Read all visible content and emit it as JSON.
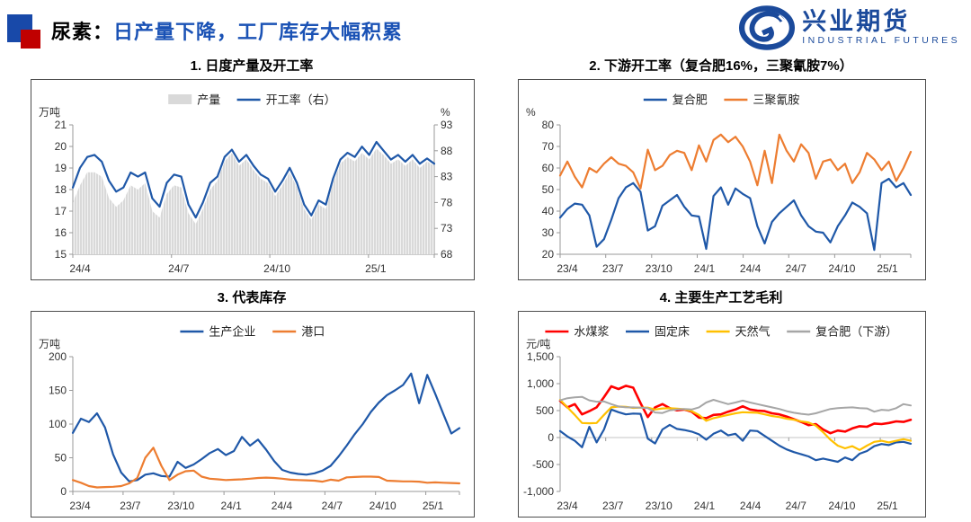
{
  "header": {
    "title_prefix": "尿素：",
    "title_main": "日产量下降，工厂库存大幅积累",
    "brand_cn": "兴业期货",
    "brand_en": "INDUSTRIAL FUTURES"
  },
  "colors": {
    "title_blue": "#1A52B5",
    "brand_navy": "#1B4A9B",
    "deco_blue": "#1849A9",
    "deco_red": "#C00000",
    "line_blue": "#1F58A8",
    "line_orange": "#ED7D31",
    "line_red": "#FF0000",
    "line_yellow": "#FFC000",
    "line_gray": "#A6A6A6",
    "area_gray": "#D9D9D9"
  },
  "chart_data": [
    {
      "type": "area+line",
      "title": "1. 日度产量及开工率",
      "unit_left": "万吨",
      "unit_right": "%",
      "ylim": [
        15,
        21
      ],
      "yticks": [
        [
          15,
          "15"
        ],
        [
          16,
          "16"
        ],
        [
          17,
          "17"
        ],
        [
          18,
          "18"
        ],
        [
          19,
          "19"
        ],
        [
          20,
          "20"
        ],
        [
          21,
          "21"
        ]
      ],
      "right_ylim": [
        68,
        93
      ],
      "right_yticks": [
        [
          68,
          "68"
        ],
        [
          73,
          "73"
        ],
        [
          78,
          "78"
        ],
        [
          83,
          "83"
        ],
        [
          88,
          "88"
        ],
        [
          93,
          "93"
        ]
      ],
      "xtick_labels": [
        "24/4",
        "24/7",
        "24/10",
        "25/1"
      ],
      "xtick_pos": [
        0,
        0.273,
        0.545,
        0.818
      ],
      "legend_position": "top",
      "grid": false,
      "series": [
        {
          "name": "产量",
          "type": "area",
          "axis": "left",
          "color": "#D9D9D9",
          "values": [
            17.4,
            18.2,
            18.8,
            18.8,
            18.6,
            17.6,
            17.2,
            17.5,
            18.2,
            18,
            18.3,
            17,
            16.7,
            17.8,
            18.2,
            18.1,
            16.9,
            16.4,
            17.1,
            18,
            18.4,
            19.3,
            19.7,
            19.1,
            19.4,
            18.9,
            18.5,
            18.3,
            17.7,
            18.2,
            18.8,
            18.1,
            17.1,
            16.6,
            17.3,
            17.1,
            18.3,
            19.2,
            19.5,
            19.3,
            19.7,
            19.4,
            19.9,
            19.6,
            19.2,
            19.4,
            19.1,
            19.4,
            19,
            19.3,
            19.1
          ]
        },
        {
          "name": "开工率（右）",
          "type": "line",
          "axis": "right",
          "color": "#1F58A8",
          "width": 2.2,
          "values": [
            80.9,
            84.7,
            86.8,
            87.2,
            85.9,
            82.2,
            80.1,
            80.9,
            83.8,
            83,
            83.8,
            78.8,
            77.2,
            81.8,
            83.4,
            83,
            77.6,
            75.1,
            78,
            81.8,
            83,
            86.8,
            88.2,
            85.9,
            87.2,
            85.1,
            83.4,
            82.6,
            80.1,
            82.2,
            84.7,
            81.8,
            77.6,
            75.5,
            78.4,
            77.6,
            82.6,
            86.3,
            87.6,
            86.8,
            88.8,
            87.2,
            89.7,
            88,
            86.3,
            87.2,
            85.9,
            87.2,
            85.5,
            86.5,
            85.5
          ]
        }
      ]
    },
    {
      "type": "line",
      "title": "2. 下游开工率（复合肥16%，三聚氰胺7%）",
      "unit_left": "%",
      "ylim": [
        20,
        80
      ],
      "yticks": [
        [
          20,
          "20"
        ],
        [
          30,
          "30"
        ],
        [
          40,
          "40"
        ],
        [
          50,
          "50"
        ],
        [
          60,
          "60"
        ],
        [
          70,
          "70"
        ],
        [
          80,
          "80"
        ]
      ],
      "xtick_labels": [
        "23/4",
        "23/7",
        "23/10",
        "24/1",
        "24/4",
        "24/7",
        "24/10",
        "25/1"
      ],
      "xtick_pos": [
        0,
        0.13,
        0.261,
        0.391,
        0.522,
        0.652,
        0.783,
        0.913
      ],
      "legend_position": "top",
      "grid": false,
      "series": [
        {
          "name": "复合肥",
          "type": "line",
          "axis": "left",
          "color": "#1F58A8",
          "width": 2.2,
          "values": [
            37,
            41,
            43.5,
            43,
            38,
            23.5,
            27,
            36,
            46,
            51,
            53,
            49,
            31,
            33,
            42.5,
            45,
            47.5,
            42,
            38,
            37.5,
            22.5,
            47,
            51,
            43,
            50.5,
            48,
            46,
            33,
            25,
            35,
            39,
            42,
            45,
            38,
            33,
            30.5,
            30,
            25.5,
            33,
            38,
            44,
            42,
            39,
            22,
            53,
            55,
            51,
            53,
            47.5
          ]
        },
        {
          "name": "三聚氰胺",
          "type": "line",
          "axis": "left",
          "color": "#ED7D31",
          "width": 2.2,
          "values": [
            56.5,
            63,
            56,
            51,
            60,
            58,
            62,
            65,
            62,
            61,
            58,
            50.5,
            68.5,
            59,
            61,
            66,
            68,
            67,
            59,
            70.5,
            63,
            73,
            75.5,
            72,
            74.5,
            70,
            63,
            52,
            68,
            53,
            75.5,
            68,
            63,
            71,
            67,
            55,
            63,
            64,
            59,
            62,
            53,
            58,
            67,
            64,
            59,
            63,
            54,
            60,
            67.5
          ]
        }
      ]
    },
    {
      "type": "line",
      "title": "3. 代表库存",
      "unit_left": "万吨",
      "ylim": [
        0,
        200
      ],
      "yticks": [
        [
          0,
          "0"
        ],
        [
          50,
          "50"
        ],
        [
          100,
          "100"
        ],
        [
          150,
          "150"
        ],
        [
          200,
          "200"
        ]
      ],
      "xtick_labels": [
        "23/4",
        "23/7",
        "23/10",
        "24/1",
        "24/4",
        "24/7",
        "24/10",
        "25/1"
      ],
      "xtick_pos": [
        0,
        0.13,
        0.261,
        0.391,
        0.522,
        0.652,
        0.783,
        0.913
      ],
      "legend_position": "top",
      "grid": false,
      "series": [
        {
          "name": "生产企业",
          "type": "line",
          "axis": "left",
          "color": "#1F58A8",
          "width": 2.2,
          "values": [
            87,
            108,
            103,
            116,
            95,
            55,
            28,
            15,
            17,
            25,
            27,
            23,
            22,
            44,
            35,
            40,
            48,
            57,
            63,
            54,
            60,
            81,
            68,
            77,
            62,
            45,
            32,
            28,
            26,
            25,
            27,
            31,
            38,
            52,
            68,
            85,
            100,
            118,
            132,
            143,
            150,
            158,
            175,
            131,
            173,
            145,
            115,
            86,
            94
          ]
        },
        {
          "name": "港口",
          "type": "line",
          "axis": "left",
          "color": "#ED7D31",
          "width": 2.2,
          "values": [
            17,
            13,
            8,
            6,
            6.5,
            7,
            8,
            12,
            20,
            50,
            65,
            38,
            17,
            25,
            30,
            31,
            22,
            19,
            18,
            17,
            17.5,
            18,
            19,
            20,
            20.5,
            20,
            19,
            17.5,
            17,
            16.5,
            16,
            14.5,
            17.5,
            16,
            21,
            21.5,
            22,
            22,
            21.5,
            16,
            15.5,
            15,
            15,
            14.5,
            13,
            13.5,
            13,
            12.5,
            12
          ]
        }
      ]
    },
    {
      "type": "line",
      "title": "4. 主要生产工艺毛利",
      "unit_left": "元/吨",
      "ylim": [
        -1000,
        1500
      ],
      "yticks": [
        [
          -1000,
          "-1,000"
        ],
        [
          -500,
          "-500"
        ],
        [
          0,
          "0"
        ],
        [
          500,
          "500"
        ],
        [
          1000,
          "1,000"
        ],
        [
          1500,
          "1,500"
        ]
      ],
      "xtick_labels": [
        "23/4",
        "23/7",
        "23/10",
        "24/1",
        "24/4",
        "24/7",
        "24/10",
        "25/1"
      ],
      "xtick_pos": [
        0,
        0.13,
        0.261,
        0.391,
        0.522,
        0.652,
        0.783,
        0.913
      ],
      "legend_position": "top",
      "grid": false,
      "x_axis_at_zero": true,
      "series": [
        {
          "name": "水煤浆",
          "type": "line",
          "axis": "left",
          "color": "#FF0000",
          "width": 2.6,
          "values": [
            680,
            560,
            620,
            430,
            490,
            560,
            750,
            950,
            900,
            960,
            925,
            640,
            380,
            560,
            620,
            545,
            505,
            520,
            480,
            370,
            360,
            420,
            430,
            480,
            520,
            580,
            520,
            500,
            490,
            450,
            430,
            390,
            340,
            290,
            230,
            250,
            150,
            80,
            130,
            110,
            170,
            210,
            200,
            260,
            250,
            270,
            300,
            290,
            330
          ]
        },
        {
          "name": "固定床",
          "type": "line",
          "axis": "left",
          "color": "#1F58A8",
          "width": 2.2,
          "values": [
            120,
            20,
            -60,
            -180,
            200,
            -90,
            150,
            520,
            470,
            430,
            445,
            440,
            -20,
            -110,
            150,
            235,
            160,
            140,
            110,
            60,
            -40,
            70,
            130,
            40,
            70,
            -60,
            130,
            120,
            30,
            -60,
            -150,
            -220,
            -270,
            -310,
            -350,
            -420,
            -390,
            -420,
            -450,
            -370,
            -420,
            -300,
            -250,
            -160,
            -120,
            -140,
            -90,
            -80,
            -115
          ]
        },
        {
          "name": "天然气",
          "type": "line",
          "axis": "left",
          "color": "#FFC000",
          "width": 2.2,
          "values": [
            700,
            560,
            420,
            270,
            265,
            270,
            420,
            560,
            575,
            570,
            550,
            555,
            555,
            520,
            540,
            545,
            535,
            525,
            490,
            420,
            310,
            360,
            390,
            420,
            450,
            470,
            465,
            460,
            430,
            400,
            380,
            350,
            330,
            300,
            280,
            220,
            100,
            -40,
            -150,
            -200,
            -160,
            -230,
            -150,
            -80,
            -60,
            -90,
            -60,
            -30,
            -60
          ]
        },
        {
          "name": "复合肥（下游）",
          "type": "line",
          "axis": "left",
          "color": "#A6A6A6",
          "width": 2,
          "values": [
            690,
            730,
            745,
            755,
            690,
            665,
            670,
            620,
            575,
            560,
            560,
            555,
            545,
            465,
            455,
            505,
            520,
            530,
            520,
            560,
            650,
            700,
            660,
            620,
            650,
            685,
            650,
            620,
            590,
            560,
            530,
            490,
            460,
            440,
            425,
            450,
            490,
            530,
            545,
            555,
            560,
            545,
            540,
            480,
            515,
            505,
            545,
            620,
            595
          ]
        }
      ]
    }
  ]
}
